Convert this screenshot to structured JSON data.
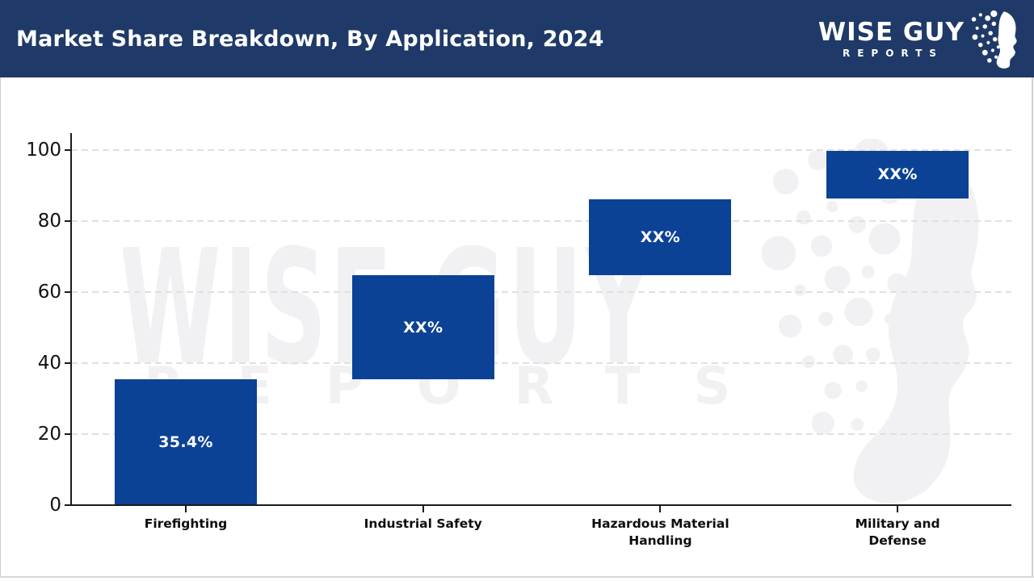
{
  "header": {
    "title": "Market Share Breakdown, By Application, 2024",
    "logo": {
      "line1": "WISE GUY",
      "line2": "REPORTS"
    }
  },
  "watermark": {
    "line1": "WISE GUY",
    "line2": "REPORTS"
  },
  "colors": {
    "header_navy": "#1f3a68",
    "bar_blue": "#0b4296",
    "bar_label_white": "#ffffff",
    "axis_black": "#1a1a1a",
    "grid_gray": "#e0e0e0",
    "watermark_gray": "#f1f1f3"
  },
  "chart_data": {
    "type": "bar",
    "subtype": "floating-waterfall",
    "title": "Market Share Breakdown, By Application, 2024",
    "categories": [
      "Firefighting",
      "Industrial Safety",
      "Hazardous Material\nHandling",
      "Military and\nDefense"
    ],
    "segments": [
      {
        "category": "Firefighting",
        "start": 0,
        "end": 35.4,
        "label": "35.4%"
      },
      {
        "category": "Industrial Safety",
        "start": 35.4,
        "end": 64.8,
        "label": "XX%"
      },
      {
        "category": "Hazardous Material Handling",
        "start": 64.8,
        "end": 86.1,
        "label": "XX%"
      },
      {
        "category": "Military and Defense",
        "start": 86.4,
        "end": 99.8,
        "label": "XX%"
      }
    ],
    "xlabel": "",
    "ylabel": "",
    "ylim": [
      0,
      100
    ],
    "yticks": [
      0,
      20,
      40,
      60,
      80,
      100
    ],
    "grid": "horizontal-dashed",
    "legend": "none",
    "bar_color": "#0b4296",
    "label_color": "#ffffff"
  }
}
